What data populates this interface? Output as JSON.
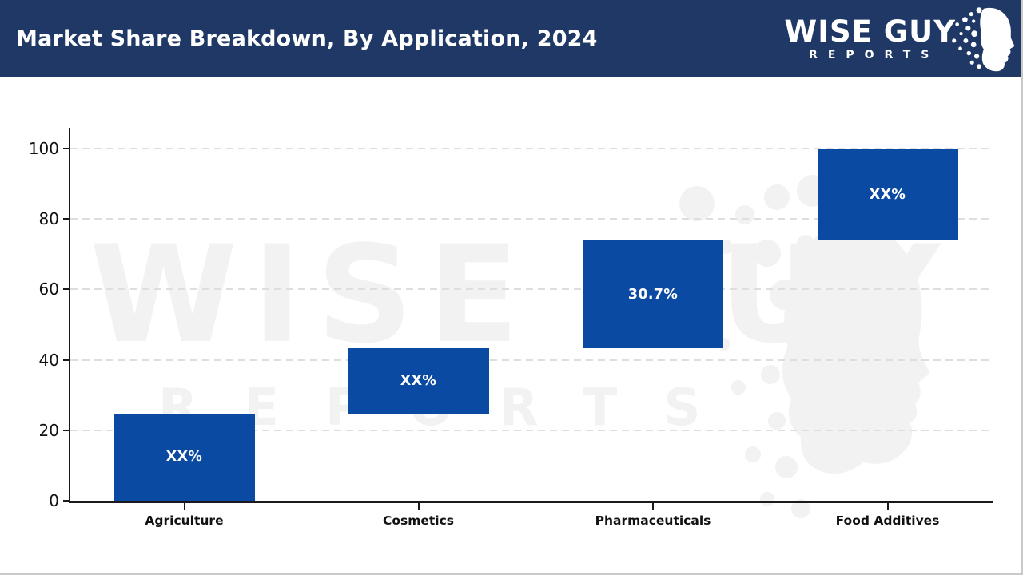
{
  "header": {
    "title": "Market Share Breakdown, By Application, 2024",
    "logo": {
      "name": "WISE GUY",
      "sub": "REPORTS"
    }
  },
  "watermark": {
    "line1": "WISE GUY",
    "line2": "REPORTS"
  },
  "colors": {
    "header_bg": "#1F3865",
    "bar": "#0B4AA2",
    "axis": "#1a1a1a",
    "gridline": "#dedede",
    "watermark": "#f2f2f3",
    "bar_label": "#ffffff"
  },
  "chart_data": {
    "type": "bar",
    "subtype": "floating-waterfall",
    "title": "Market Share Breakdown, By Application, 2024",
    "categories": [
      "Agriculture",
      "Cosmetics",
      "Pharmaceuticals",
      "Food Additives"
    ],
    "segments": [
      {
        "category": "Agriculture",
        "start": 0,
        "end": 24.8,
        "label": "XX%"
      },
      {
        "category": "Cosmetics",
        "start": 24.7,
        "end": 43.2,
        "label": "XX%"
      },
      {
        "category": "Pharmaceuticals",
        "start": 43.2,
        "end": 73.9,
        "label": "30.7%"
      },
      {
        "category": "Food Additives",
        "start": 73.9,
        "end": 100,
        "label": "XX%"
      }
    ],
    "yticks": [
      0,
      20,
      40,
      60,
      80,
      100
    ],
    "ylim": [
      0,
      106
    ],
    "xlabel": "",
    "ylabel": "",
    "grid": "horizontal-dashed",
    "legend": null
  }
}
